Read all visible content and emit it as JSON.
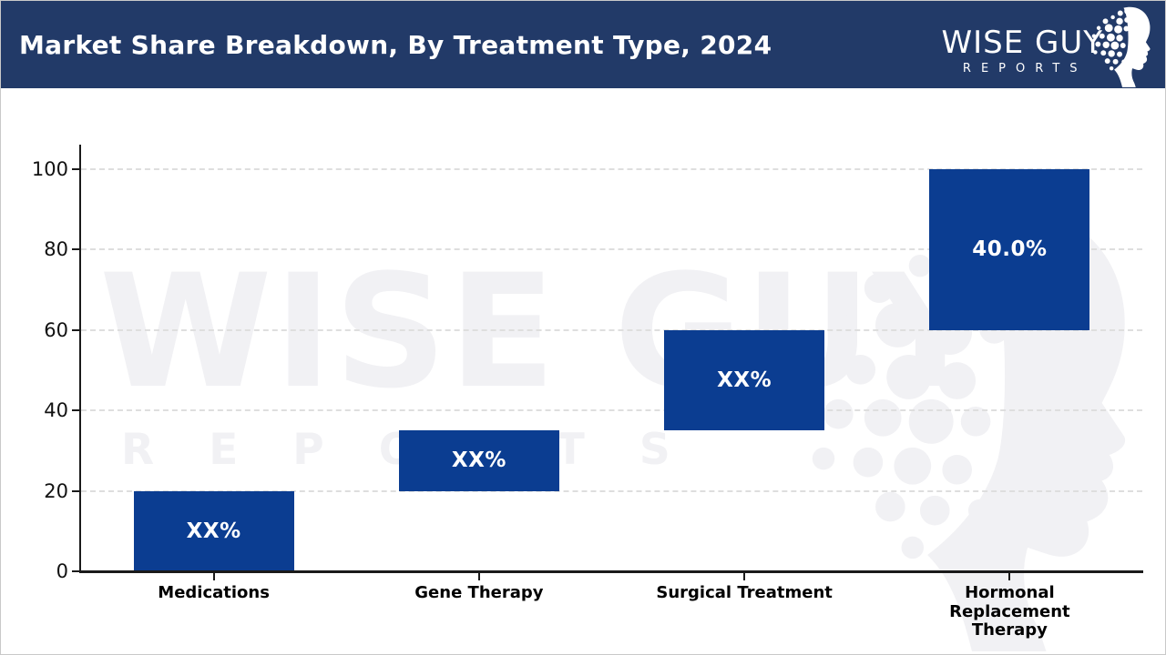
{
  "header": {
    "title": "Market Share Breakdown, By Treatment Type, 2024",
    "background_color": "#223A68",
    "logo": {
      "line1": "WISE GUY",
      "line2": "REPORTS"
    }
  },
  "watermark": {
    "line1": "WISE GUY",
    "line2": "REPORTS",
    "color": "#F1F1F4"
  },
  "chart_data": {
    "type": "bar",
    "subtype": "waterfall",
    "title": "Market Share Breakdown, By Treatment Type, 2024",
    "xlabel": "",
    "ylabel": "",
    "ylim": [
      0,
      105
    ],
    "y_ticks": [
      0,
      20,
      40,
      60,
      80,
      100
    ],
    "grid": "horizontal dashed",
    "legend": "none",
    "bar_color": "#0B3D91",
    "bar_label_color": "#ffffff",
    "axis_color": "#1a1a1a",
    "categories": [
      "Medications",
      "Gene Therapy",
      "Surgical Treatment",
      "Hormonal Replacement Therapy"
    ],
    "segments": [
      {
        "category": "Medications",
        "start": 0,
        "end": 20,
        "value": 20,
        "label": "XX%",
        "label_lines": [
          "Medications"
        ]
      },
      {
        "category": "Gene Therapy",
        "start": 20,
        "end": 35,
        "value": 15,
        "label": "XX%",
        "label_lines": [
          "Gene Therapy"
        ]
      },
      {
        "category": "Surgical Treatment",
        "start": 35,
        "end": 60,
        "value": 25,
        "label": "XX%",
        "label_lines": [
          "Surgical Treatment"
        ]
      },
      {
        "category": "Hormonal Replacement Therapy",
        "start": 60,
        "end": 100,
        "value": 40,
        "label": "40.0%",
        "label_lines": [
          "Hormonal",
          "Replacement",
          "Therapy"
        ]
      }
    ]
  }
}
